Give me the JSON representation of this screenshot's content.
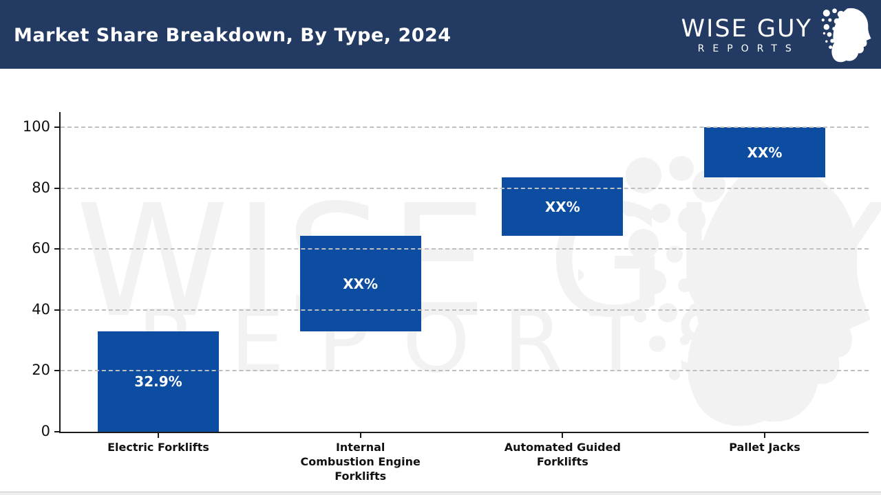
{
  "header": {
    "title": "Market Share Breakdown, By Type, 2024",
    "logo": {
      "line1": "WISE GUY",
      "line2": "REPORTS"
    }
  },
  "watermark": {
    "line1": "WISE GUY",
    "line2": "REPORTS"
  },
  "colors": {
    "header_bg": "#233a63",
    "bar": "#0c4da2",
    "bar_label": "#ffffff",
    "grid": "#bfbfbf",
    "axis": "#1a1a1a",
    "watermark": "#f2f2f3"
  },
  "chart_data": {
    "type": "bar",
    "subtype": "floating-waterfall",
    "title": "Market Share Breakdown, By Type, 2024",
    "xlabel": "",
    "ylabel": "",
    "ylim": [
      0,
      105
    ],
    "yticks": [
      0,
      20,
      40,
      60,
      80,
      100
    ],
    "grid": "horizontal-dashed-over-bars",
    "legend": "none",
    "categories": [
      "Electric Forklifts",
      "Internal Combustion Engine Forklifts",
      "Automated Guided Forklifts",
      "Pallet Jacks"
    ],
    "categories_lines": [
      [
        "Electric Forklifts"
      ],
      [
        "Internal",
        "Combustion Engine",
        "Forklifts"
      ],
      [
        "Automated Guided",
        "Forklifts"
      ],
      [
        "Pallet Jacks"
      ]
    ],
    "segments": [
      {
        "category": "Electric Forklifts",
        "start": 0,
        "end": 32.9,
        "label": "32.9%"
      },
      {
        "category": "Internal Combustion Engine Forklifts",
        "start": 32.9,
        "end": 64.3,
        "label": "XX%"
      },
      {
        "category": "Automated Guided Forklifts",
        "start": 64.3,
        "end": 83.5,
        "label": "XX%"
      },
      {
        "category": "Pallet Jacks",
        "start": 83.5,
        "end": 100,
        "label": "XX%"
      }
    ]
  }
}
